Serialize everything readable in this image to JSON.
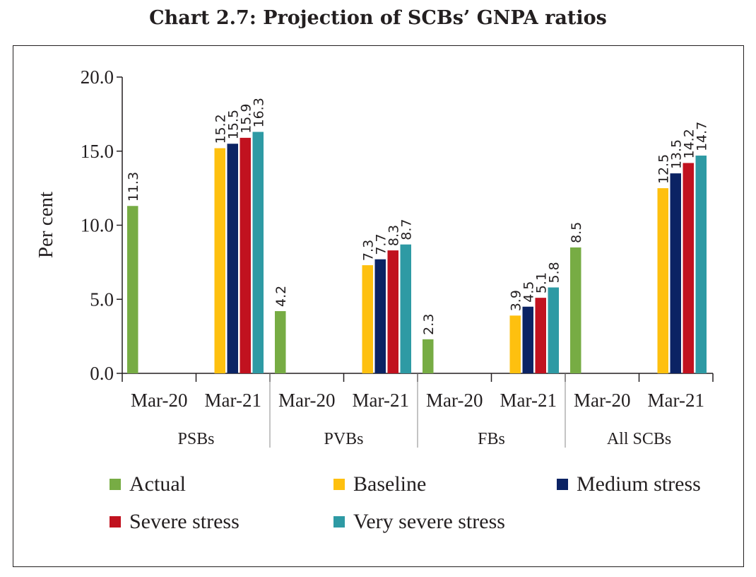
{
  "chart_data": {
    "type": "bar",
    "title": "Chart 2.7: Projection of SCBs’ GNPA ratios",
    "ylabel": "Per cent",
    "xlabel": "",
    "ylim": [
      0,
      20
    ],
    "yticks": [
      "0.0",
      "5.0",
      "10.0",
      "15.0",
      "20.0"
    ],
    "groups": [
      {
        "name": "PSBs",
        "categories": [
          "Mar-20",
          "Mar-21"
        ]
      },
      {
        "name": "PVBs",
        "categories": [
          "Mar-20",
          "Mar-21"
        ]
      },
      {
        "name": "FBs",
        "categories": [
          "Mar-20",
          "Mar-21"
        ]
      },
      {
        "name": "All SCBs",
        "categories": [
          "Mar-20",
          "Mar-21"
        ]
      }
    ],
    "series": [
      {
        "name": "Actual",
        "color": "#77ac44",
        "values": [
          11.3,
          4.2,
          2.3,
          8.5
        ],
        "period": "Mar-20",
        "labels": [
          "11.3",
          "4.2",
          "2.3",
          "8.5"
        ]
      },
      {
        "name": "Baseline",
        "color": "#fec00f",
        "values": [
          15.2,
          7.3,
          3.9,
          12.5
        ],
        "period": "Mar-21",
        "labels": [
          "15.2",
          "7.3",
          "3.9",
          "12.5"
        ]
      },
      {
        "name": "Medium stress",
        "color": "#0b2364",
        "values": [
          15.5,
          7.7,
          4.5,
          13.5
        ],
        "period": "Mar-21",
        "labels": [
          "15.5",
          "7.7",
          "4.5",
          "13.5"
        ]
      },
      {
        "name": "Severe stress",
        "color": "#c1121f",
        "values": [
          15.9,
          8.3,
          5.1,
          14.2
        ],
        "period": "Mar-21",
        "labels": [
          "15.9",
          "8.3",
          "5.1",
          "14.2"
        ]
      },
      {
        "name": "Very severe stress",
        "color": "#2e9aa4",
        "values": [
          16.3,
          8.7,
          5.8,
          14.7
        ],
        "period": "Mar-21",
        "labels": [
          "16.3",
          "8.7",
          "5.8",
          "14.7"
        ]
      }
    ],
    "legend": [
      "Actual",
      "Baseline",
      "Medium stress",
      "Severe stress",
      "Very severe stress"
    ]
  }
}
